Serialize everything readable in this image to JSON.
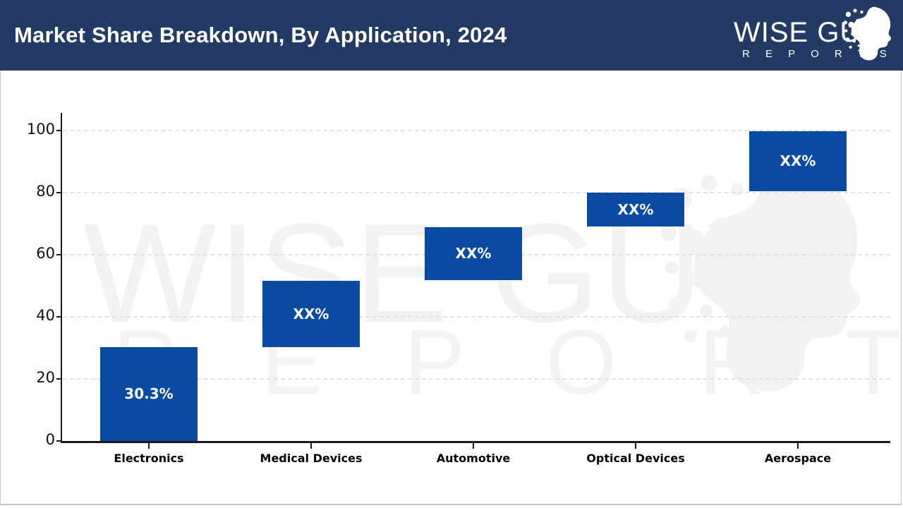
{
  "header": {
    "title": "Market Share Breakdown, By Application, 2024",
    "logo_line1": "WISE GUY",
    "logo_line2": "R E P O R T S"
  },
  "watermark": {
    "line1": "WISE GUY",
    "line2": "R E P O R T S"
  },
  "colors": {
    "header_bg": "#233A64",
    "bar": "#0B4AA2",
    "bar_label": "#FFFFFF",
    "grid": "#E2E2E2",
    "axis": "#1A1A1A",
    "title_text": "#FFFFFF",
    "tick_text": "#111111",
    "watermark": "#F2F2F2"
  },
  "chart_data": {
    "type": "bar",
    "variant": "waterfall",
    "title": "Market Share Breakdown, By Application, 2024",
    "categories": [
      "Electronics",
      "Medical Devices",
      "Automotive",
      "Optical Devices",
      "Aerospace"
    ],
    "segments": [
      {
        "category": "Electronics",
        "start": 0,
        "end": 30.3,
        "label": "30.3%"
      },
      {
        "category": "Medical Devices",
        "start": 30.3,
        "end": 51.6,
        "label": "XX%"
      },
      {
        "category": "Automotive",
        "start": 51.8,
        "end": 68.9,
        "label": "XX%"
      },
      {
        "category": "Optical Devices",
        "start": 69.1,
        "end": 80.0,
        "label": "XX%"
      },
      {
        "category": "Aerospace",
        "start": 80.5,
        "end": 99.8,
        "label": "XX%"
      }
    ],
    "xlabel": "",
    "ylabel": "",
    "yticks": [
      0,
      20,
      40,
      60,
      80,
      100
    ],
    "ylim": [
      0,
      104.5
    ],
    "grid": "horizontal-dashed",
    "legend": "none"
  }
}
